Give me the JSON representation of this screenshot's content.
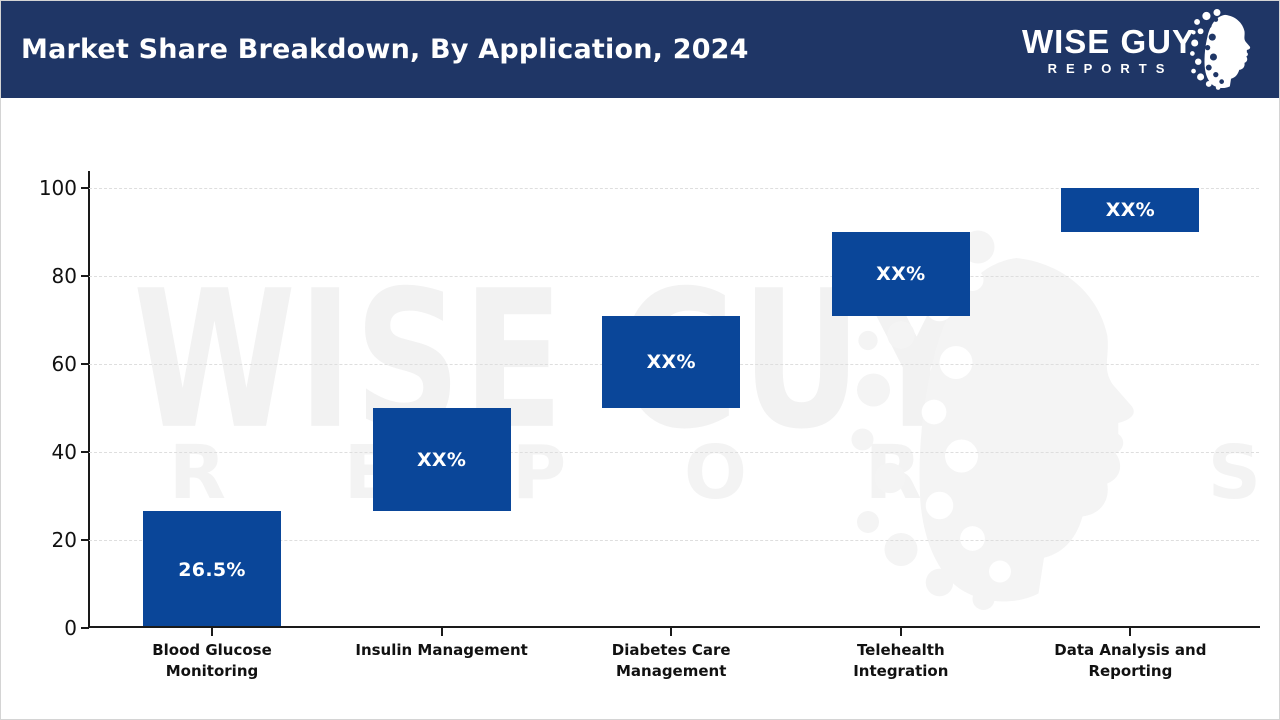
{
  "header": {
    "title": "Market Share Breakdown, By Application, 2024",
    "logo": {
      "line1": "WISE GUY",
      "line2": "REPORTS"
    }
  },
  "watermark": {
    "line1": "WISE GUY",
    "line2": "R E P O R T S"
  },
  "chart_data": {
    "type": "bar",
    "subtype": "waterfall",
    "title": "Market Share Breakdown, By Application, 2024",
    "xlabel": "",
    "ylabel": "",
    "categories": [
      "Blood Glucose Monitoring",
      "Insulin Management",
      "Diabetes Care Management",
      "Telehealth Integration",
      "Data Analysis and Reporting"
    ],
    "categories_wrapped": [
      [
        "Blood Glucose",
        "Monitoring"
      ],
      [
        "Insulin Management"
      ],
      [
        "Diabetes Care",
        "Management"
      ],
      [
        "Telehealth",
        "Integration"
      ],
      [
        "Data Analysis and",
        "Reporting"
      ]
    ],
    "segments": [
      {
        "start": 0,
        "end": 26.5,
        "label": "26.5%"
      },
      {
        "start": 26.5,
        "end": 50,
        "label": "XX%"
      },
      {
        "start": 50,
        "end": 71,
        "label": "XX%"
      },
      {
        "start": 71,
        "end": 90,
        "label": "XX%"
      },
      {
        "start": 90,
        "end": 100,
        "label": "XX%"
      }
    ],
    "values": [
      26.5,
      23.5,
      21,
      19,
      10
    ],
    "yticks": [
      0,
      20,
      40,
      60,
      80,
      100
    ],
    "ylim": [
      0,
      105
    ],
    "grid": "horizontal dashed",
    "legend": "none",
    "colors": {
      "bar": "#0a4699",
      "bar_label": "#ffffff",
      "axis": "#1a1a1a",
      "grid": "#dedede",
      "header_bg": "#1f3666",
      "watermark": "#f2f2f2"
    }
  }
}
